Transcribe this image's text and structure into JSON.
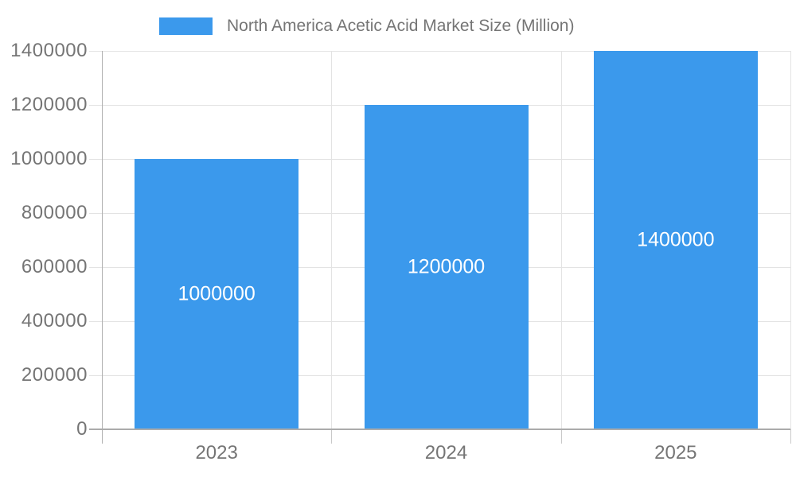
{
  "chart_data": {
    "type": "bar",
    "title": "",
    "legend": {
      "position": "top",
      "label": "North America Acetic Acid Market Size (Million)"
    },
    "categories": [
      "2023",
      "2024",
      "2025"
    ],
    "series": [
      {
        "name": "North America Acetic Acid Market Size (Million)",
        "values": [
          1000000,
          1200000,
          1400000
        ],
        "value_labels": [
          "1000000",
          "1200000",
          "1400000"
        ]
      }
    ],
    "xlabel": "",
    "ylabel": "",
    "ylim": [
      0,
      1400000
    ],
    "ytick_step": 200000,
    "ytick_labels": [
      "0",
      "200000",
      "400000",
      "600000",
      "800000",
      "1000000",
      "1200000",
      "1400000"
    ],
    "grid": true,
    "colors": {
      "bar": "#3b99ec",
      "tick_text": "#757575",
      "legend_text": "#757575",
      "bar_value_text": "#ffffff",
      "gridline": "#e3e3e3",
      "minor_tick": "#c9c9c9",
      "axis": "#b0b0b0",
      "baseline": "#ababab",
      "background": "#ffffff"
    }
  }
}
